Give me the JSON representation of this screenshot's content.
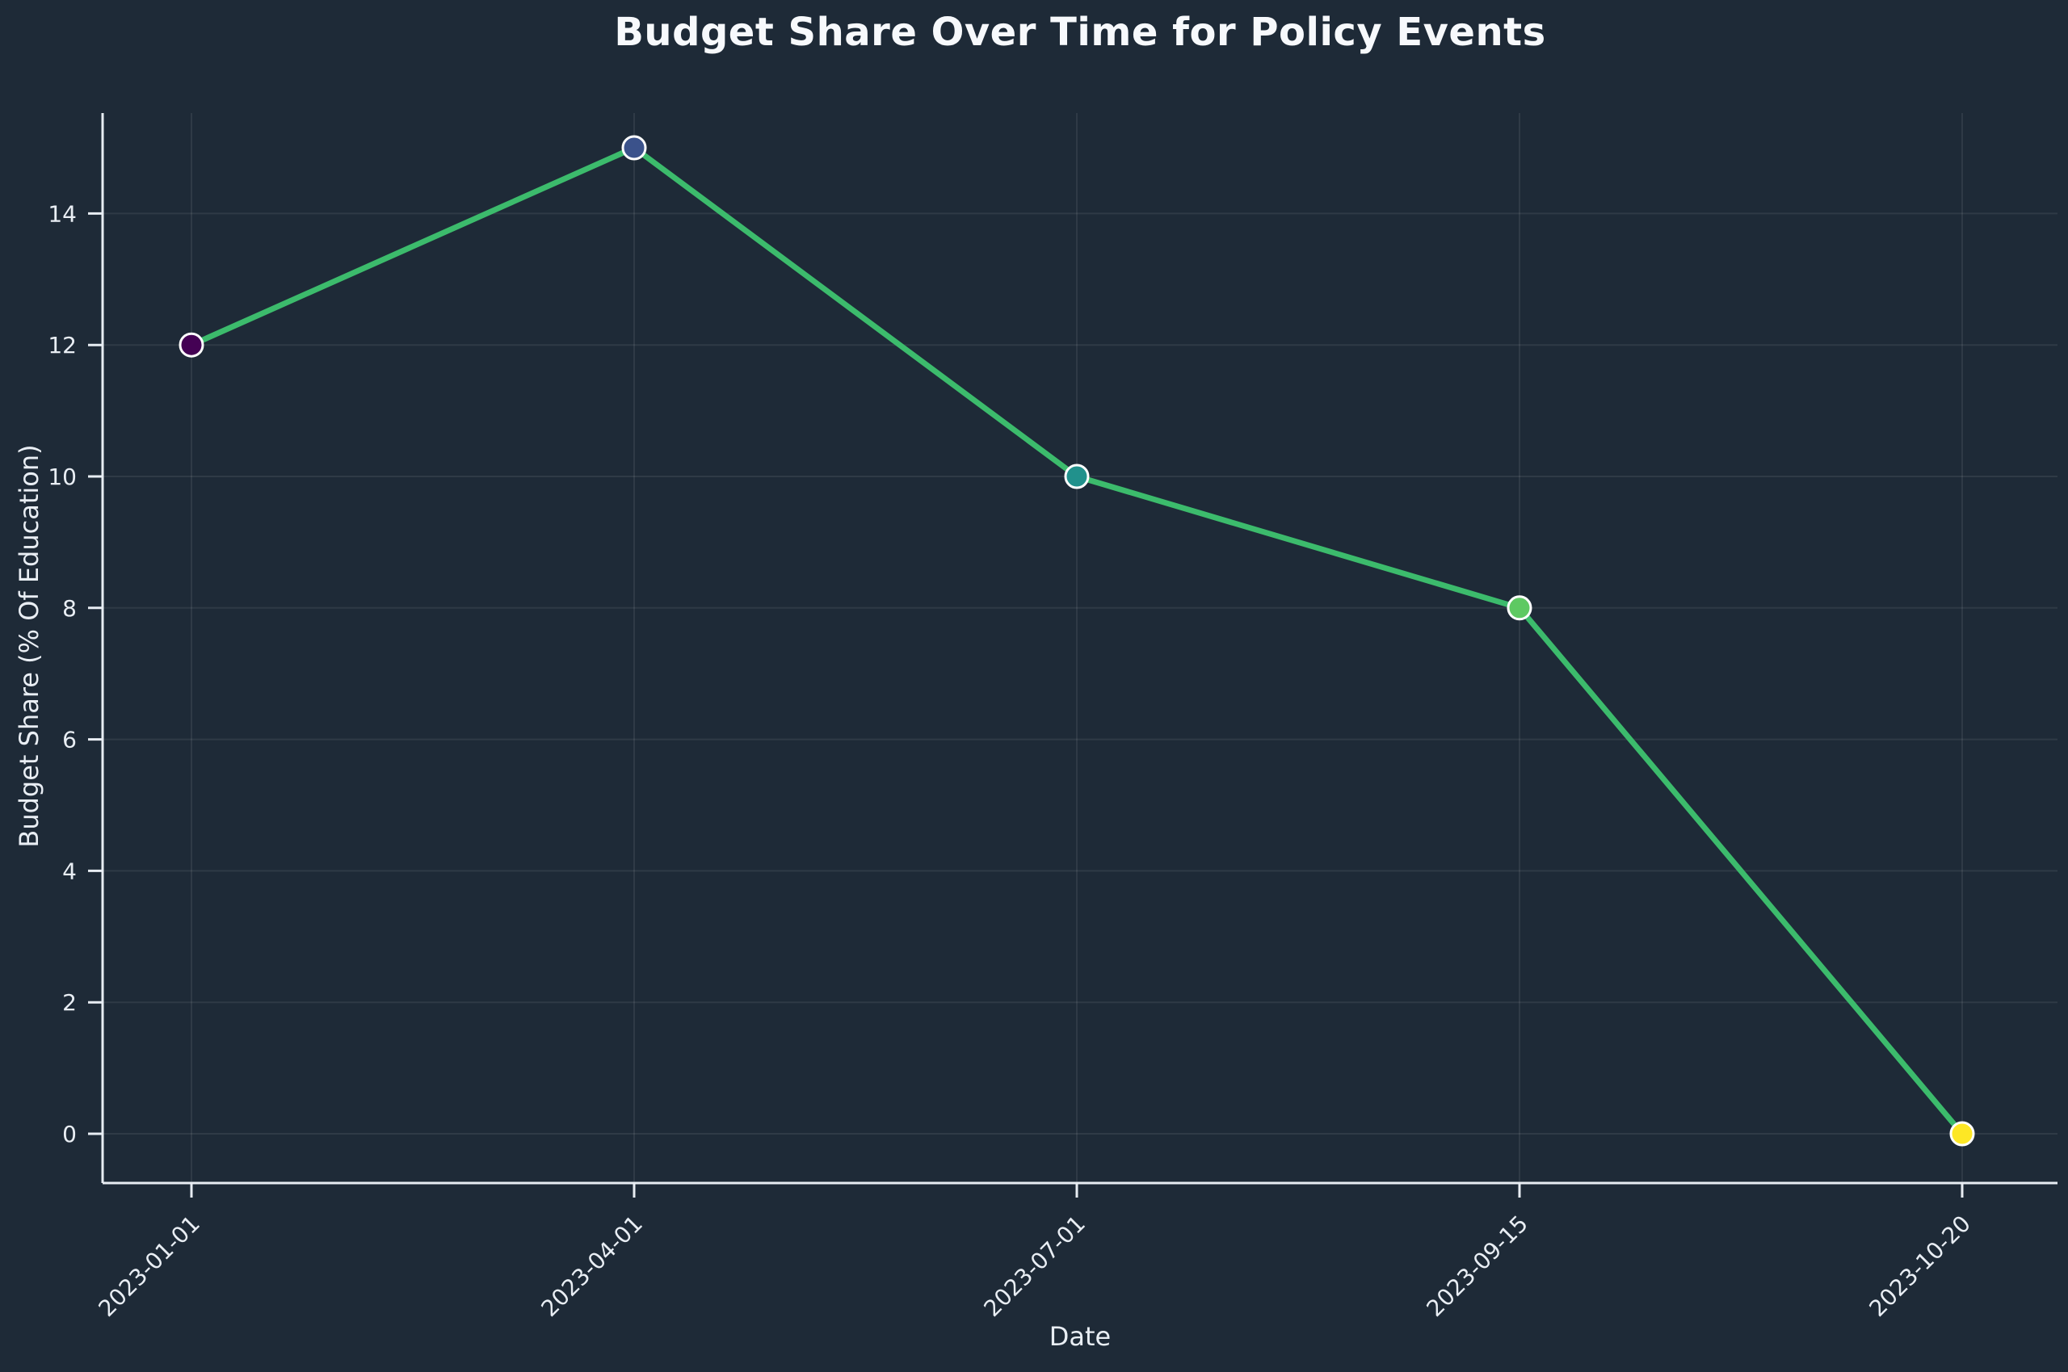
{
  "chart_data": {
    "type": "line",
    "title": "Budget Share Over Time for Policy Events",
    "xlabel": "Date",
    "ylabel": "Budget Share (% Of Education)",
    "categories": [
      "2023-01-01",
      "2023-04-01",
      "2023-07-01",
      "2023-09-15",
      "2023-10-20"
    ],
    "series": [
      {
        "name": "Budget Share",
        "values": [
          12,
          15,
          10,
          8,
          0
        ]
      }
    ],
    "points": [
      {
        "date": "2023-01-01",
        "value": 12
      },
      {
        "date": "2023-04-01",
        "value": 15
      },
      {
        "date": "2023-07-01",
        "value": 10
      },
      {
        "date": "2023-09-15",
        "value": 8
      },
      {
        "date": "2023-10-20",
        "value": 0
      }
    ],
    "y_ticks": [
      0,
      2,
      4,
      6,
      8,
      10,
      12,
      14
    ],
    "ylim": [
      -0.77,
      15.55
    ],
    "grid": true,
    "legend_position": "none",
    "colors": {
      "background": "#1e2a37",
      "line": "#3cbb6c",
      "marker_fills": [
        "#440154",
        "#3b528b",
        "#21918c",
        "#5ec962",
        "#fde725"
      ],
      "marker_edge": "#ffffff",
      "axis": "#e8edf3",
      "grid": "rgba(255,255,255,0.08)",
      "text": "#e9eef4",
      "title": "#f7f9fc"
    }
  }
}
